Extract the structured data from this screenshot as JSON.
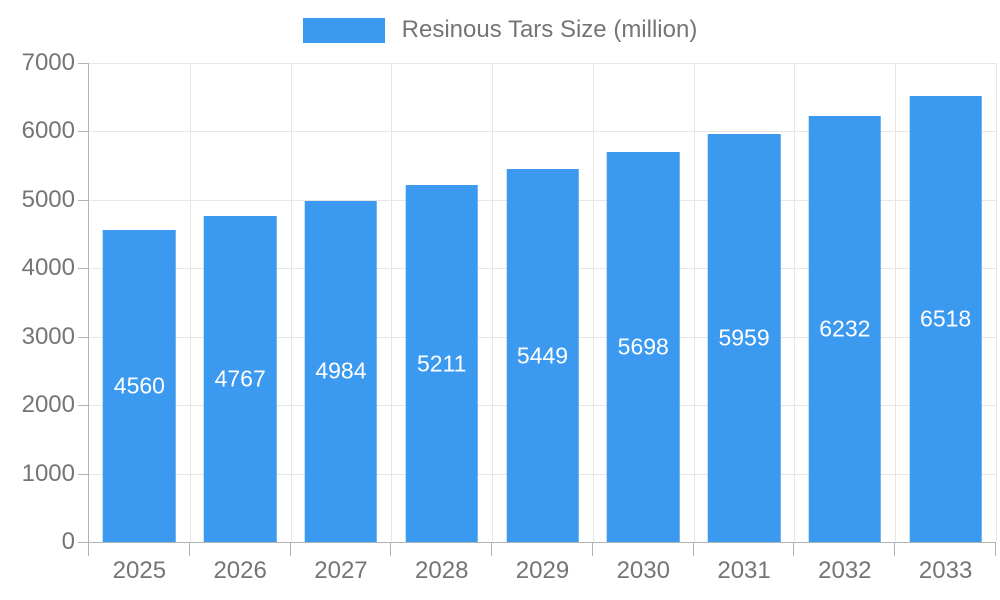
{
  "chart_data": {
    "type": "bar",
    "title": "",
    "legend": {
      "label": "Resinous Tars Size (million)",
      "position": "top"
    },
    "categories": [
      "2025",
      "2026",
      "2027",
      "2028",
      "2029",
      "2030",
      "2031",
      "2032",
      "2033"
    ],
    "series": [
      {
        "name": "Resinous Tars Size (million)",
        "values": [
          4560,
          4767,
          4984,
          5211,
          5449,
          5698,
          5959,
          6232,
          6518
        ]
      }
    ],
    "xlabel": "",
    "ylabel": "",
    "ylim": [
      0,
      7000
    ],
    "ytick_step": 1000,
    "yticks": [
      "0",
      "1000",
      "2000",
      "3000",
      "4000",
      "5000",
      "6000",
      "7000"
    ],
    "grid": true,
    "bar_value_labels_shown": true
  },
  "colors": {
    "bar": "#3B99F0",
    "axis": "#b3b3b3",
    "grid": "#e6e6e6",
    "text": "#757575",
    "bar_label_text": "#ffffff"
  }
}
